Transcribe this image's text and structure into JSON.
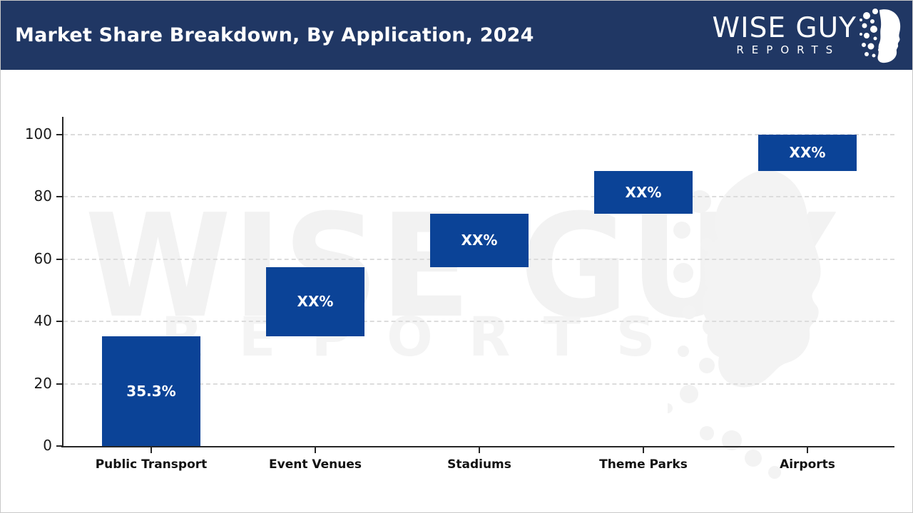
{
  "header": {
    "title": "Market Share Breakdown, By Application, 2024",
    "logo": {
      "line1": "WISE GUY",
      "line2": "REPORTS"
    }
  },
  "watermark": {
    "line1": "WISE GUY",
    "line2": "REPORTS"
  },
  "chart_data": {
    "type": "bar",
    "subtype": "waterfall",
    "title": "Market Share Breakdown, By Application, 2024",
    "categories": [
      "Public Transport",
      "Event Venues",
      "Stadiums",
      "Theme Parks",
      "Airports"
    ],
    "segments": [
      {
        "category": "Public Transport",
        "start": 0,
        "end": 35.3,
        "label": "35.3%"
      },
      {
        "category": "Event Venues",
        "start": 35.3,
        "end": 57.3,
        "label": "XX%"
      },
      {
        "category": "Stadiums",
        "start": 57.3,
        "end": 74.6,
        "label": "XX%"
      },
      {
        "category": "Theme Parks",
        "start": 74.6,
        "end": 88.2,
        "label": "XX%"
      },
      {
        "category": "Airports",
        "start": 88.2,
        "end": 100,
        "label": "XX%"
      }
    ],
    "xlabel": "",
    "ylabel": "",
    "ylim": [
      0,
      105
    ],
    "yticks": [
      0,
      20,
      40,
      60,
      80,
      100
    ],
    "grid": "horizontal-dashed",
    "legend": "none"
  },
  "colors": {
    "header_bg": "#203764",
    "bar": "#0b4397",
    "bar_label": "#ffffff",
    "axis": "#262626",
    "grid": "#dcdcdc",
    "watermark": "#f2f2f2"
  }
}
